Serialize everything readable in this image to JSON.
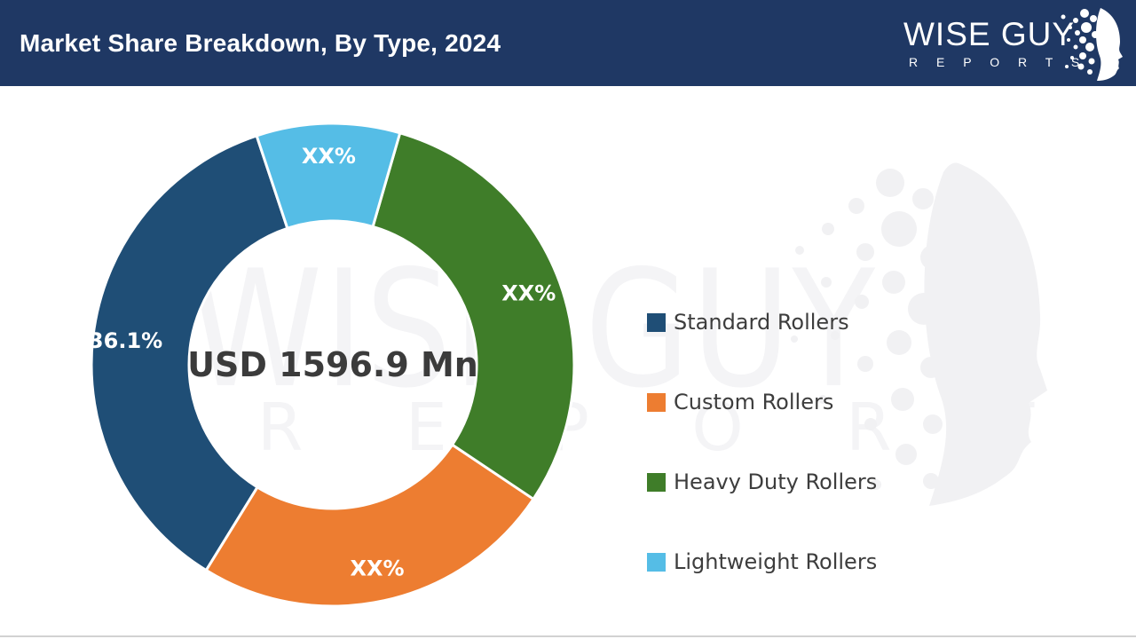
{
  "header": {
    "title": "Market Share Breakdown, By Type, 2024",
    "background_color": "#1F3864",
    "logo": {
      "line1": "WISE GUY",
      "line2": "R E P O R T S"
    }
  },
  "chart_data": {
    "type": "pie",
    "subtype": "donut",
    "title": "Market Share Breakdown, By Type, 2024",
    "center_label": "USD 1596.9 Mn",
    "units": "percent share",
    "start_angle_deg": -18.4,
    "direction": "counterclockwise",
    "legend_position": "right",
    "segments": [
      {
        "name": "Standard Rollers",
        "value": 36.1,
        "label": "36.1%",
        "color": "#1F4E76"
      },
      {
        "name": "Custom Rollers",
        "value": 24.4,
        "label": "XX%",
        "color": "#ED7D31"
      },
      {
        "name": "Heavy Duty Rollers",
        "value": 29.9,
        "label": "XX%",
        "color": "#3F7D29"
      },
      {
        "name": "Lightweight Rollers",
        "value": 9.6,
        "label": "XX%",
        "color": "#55BDE6"
      }
    ]
  },
  "legend": {
    "items": [
      {
        "label": "Standard Rollers",
        "color": "#1F4E76"
      },
      {
        "label": "Custom Rollers",
        "color": "#ED7D31"
      },
      {
        "label": "Heavy Duty Rollers",
        "color": "#3F7D29"
      },
      {
        "label": "Lightweight Rollers",
        "color": "#55BDE6"
      }
    ]
  },
  "watermark": {
    "line1": "WISE GUY",
    "line2": "R E P O R T S"
  }
}
